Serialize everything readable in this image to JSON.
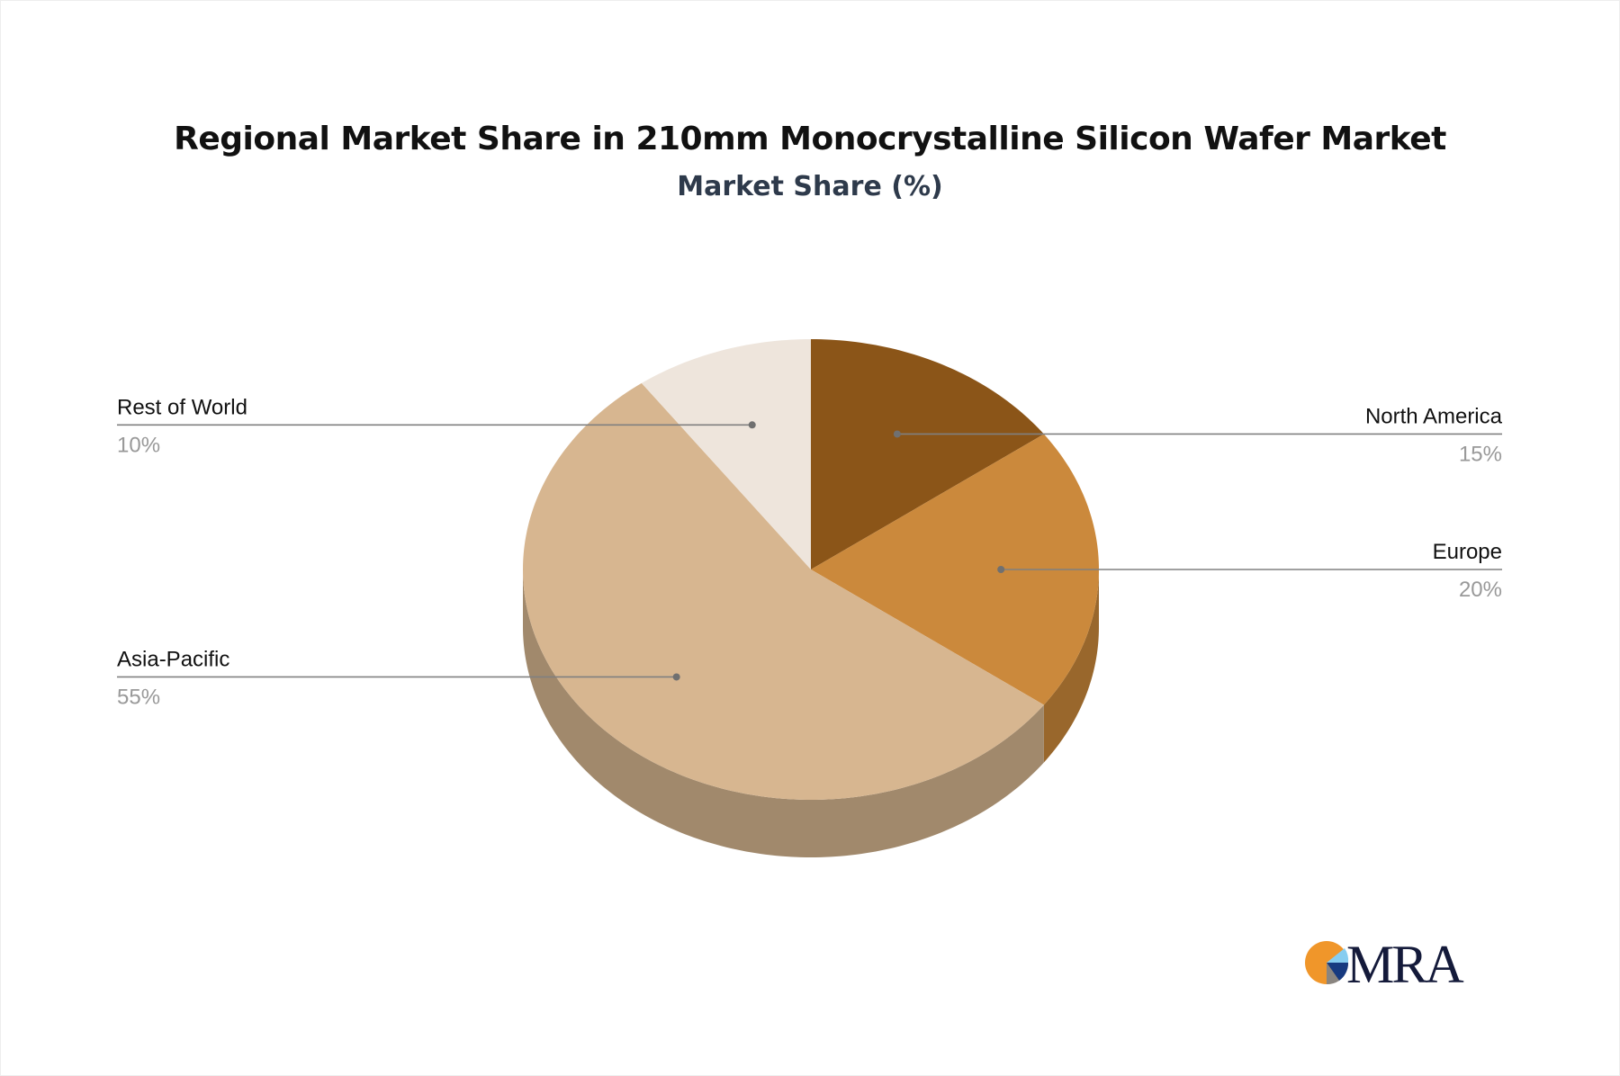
{
  "chart_data": {
    "type": "pie",
    "title": "Regional Market Share in 210mm Monocrystalline Silicon Wafer Market",
    "subtitle": "Market Share (%)",
    "style": "3d",
    "slices": [
      {
        "label": "North America",
        "value": 15,
        "value_label": "15%",
        "color": "#8b5518",
        "side_color": "#7a4a15",
        "label_side": "right"
      },
      {
        "label": "Europe",
        "value": 20,
        "value_label": "20%",
        "color": "#cb893c",
        "side_color": "#99672c",
        "label_side": "right"
      },
      {
        "label": "Asia-Pacific",
        "value": 55,
        "value_label": "55%",
        "color": "#d7b690",
        "side_color": "#a1896c",
        "label_side": "left"
      },
      {
        "label": "Rest of World",
        "value": 10,
        "value_label": "10%",
        "color": "#eee5dc",
        "side_color": "#b5aca3",
        "label_side": "left"
      }
    ]
  },
  "logo": {
    "text": "MRA",
    "colors": [
      "#f0962a",
      "#87cdf0",
      "#173a80",
      "#8a8580",
      "#141a3a"
    ]
  }
}
